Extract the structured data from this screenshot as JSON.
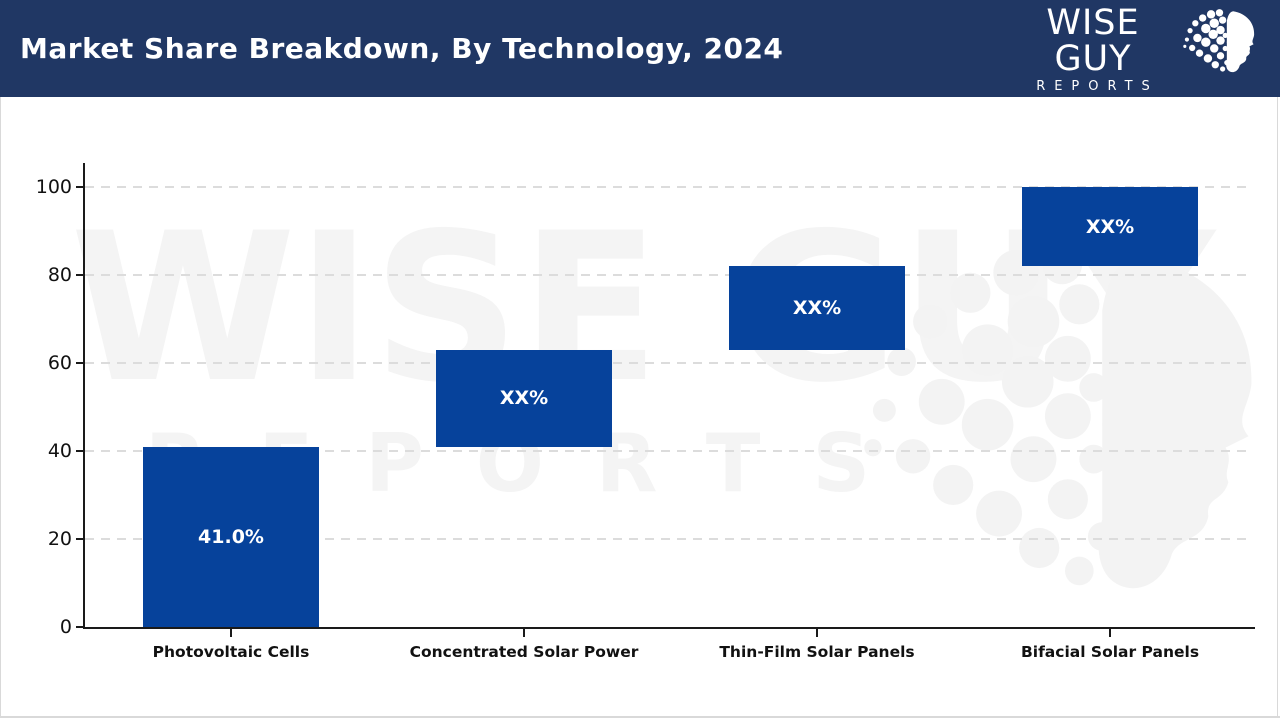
{
  "header": {
    "title": "Market Share Breakdown, By Technology, 2024",
    "bg_color": "#203764",
    "logo": {
      "line1": "WISE GUY",
      "line2": "REPORTS"
    }
  },
  "watermark": {
    "line1": "WISE GUY",
    "line2": "REPORTS"
  },
  "chart_data": {
    "type": "bar",
    "subtype": "waterfall",
    "title": "Market Share Breakdown, By Technology, 2024",
    "categories": [
      "Photovoltaic Cells",
      "Concentrated Solar Power",
      "Thin-Film Solar Panels",
      "Bifacial Solar Panels"
    ],
    "series": [
      {
        "name": "Market Share",
        "segments": [
          {
            "category": "Photovoltaic Cells",
            "start": 0,
            "end": 41,
            "label": "41.0%"
          },
          {
            "category": "Concentrated Solar Power",
            "start": 41,
            "end": 63,
            "label": "XX%"
          },
          {
            "category": "Thin-Film Solar Panels",
            "start": 63,
            "end": 82,
            "label": "XX%"
          },
          {
            "category": "Bifacial Solar Panels",
            "start": 82,
            "end": 100,
            "label": "XX%"
          }
        ]
      }
    ],
    "xlabel": "",
    "ylabel": "",
    "ylim": [
      0,
      100
    ],
    "yticks": [
      0,
      20,
      40,
      60,
      80,
      100
    ],
    "grid": "horizontal-dashed",
    "legend": "none",
    "colors": {
      "bar": "#06429b",
      "bar_label": "#ffffff",
      "grid": "#dcdcdc",
      "axis": "#1a1a1a",
      "header_bg": "#203764",
      "watermark": "#f4f4f4"
    }
  }
}
